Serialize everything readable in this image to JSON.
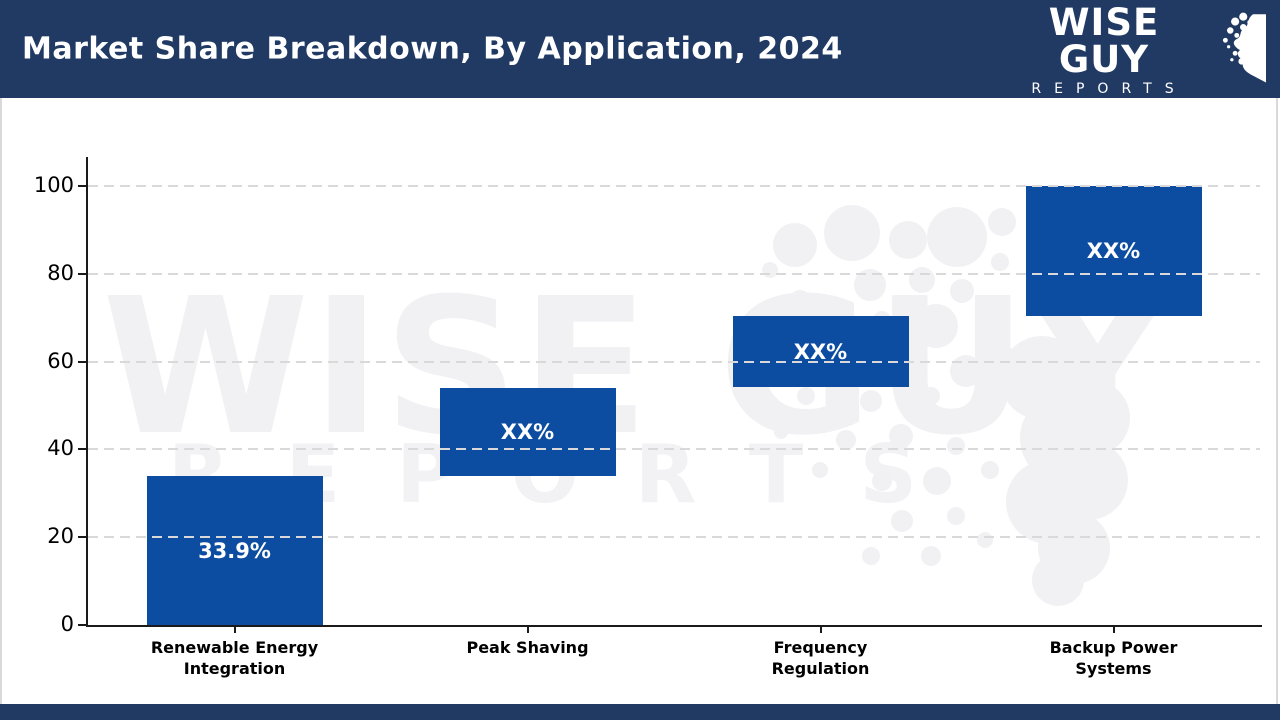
{
  "header": {
    "title": "Market Share Breakdown, By Application, 2024",
    "logo": {
      "line1": "WISE GUY",
      "line2": "REPORTS"
    }
  },
  "watermark": {
    "line1": "WISE GUY",
    "line2": "REPORTS"
  },
  "footer": {
    "text": ""
  },
  "chart_data": {
    "type": "bar",
    "subtype": "waterfall-segmented",
    "title": "Market Share Breakdown, By Application, 2024",
    "categories": [
      "Renewable Energy\nIntegration",
      "Peak Shaving",
      "Frequency\nRegulation",
      "Backup Power\nSystems"
    ],
    "segments": [
      {
        "category": "Renewable Energy Integration",
        "start": 0,
        "end": 33.9,
        "label": "33.9%"
      },
      {
        "category": "Peak Shaving",
        "start": 33.9,
        "end": 54.1,
        "label": "XX%"
      },
      {
        "category": "Frequency Regulation",
        "start": 54.1,
        "end": 70.4,
        "label": "XX%"
      },
      {
        "category": "Backup Power Systems",
        "start": 70.4,
        "end": 100,
        "label": "XX%"
      }
    ],
    "xlabel": "",
    "ylabel": "",
    "ylim": [
      0,
      106
    ],
    "yticks": [
      0,
      20,
      40,
      60,
      80,
      100
    ],
    "grid": "dashed-horizontal-drawn-over-bars",
    "legend": null,
    "colors": {
      "bar": "#0c4da2",
      "bar_label": "#ffffff",
      "axis": "#1a1a1a",
      "gridline": "#d9d9d9",
      "header_bg": "#213a64",
      "footer_bg": "#213a64",
      "watermark": "#f1f1f3"
    }
  }
}
